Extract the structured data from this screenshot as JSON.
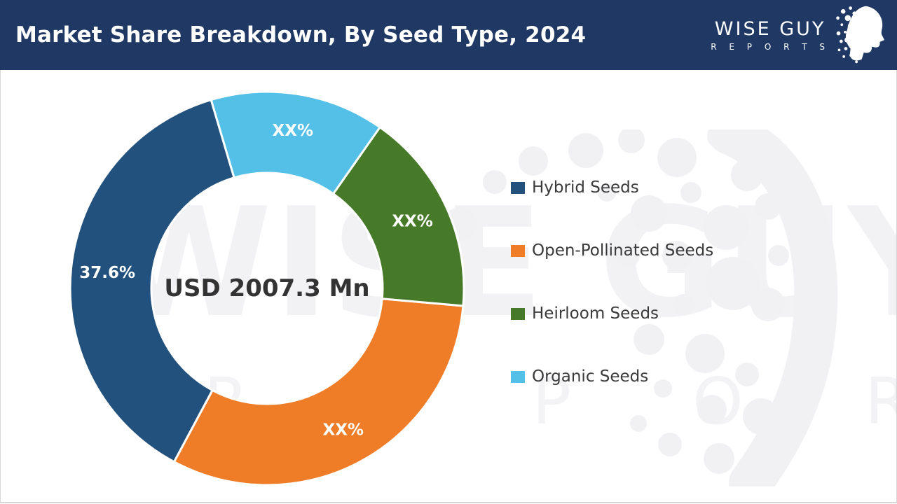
{
  "header": {
    "title": "Market Share Breakdown, By Seed Type, 2024",
    "logo": {
      "brand_line1": "WISE GUY",
      "brand_line2": "R E P O R T S"
    }
  },
  "chart_data": {
    "type": "pie",
    "subtype": "donut",
    "title": "Market Share Breakdown, By Seed Type, 2024",
    "center_label": "USD 2007.3 Mn",
    "legend_position": "right",
    "start_angle_deg": -16.5,
    "direction": "counterclockwise",
    "segments": [
      {
        "label": "Hybrid Seeds",
        "display_value": "37.6%",
        "value": 37.6,
        "color": "#21517C"
      },
      {
        "label": "Open-Pollinated Seeds",
        "display_value": "XX%",
        "value": 31.4,
        "color": "#EF7D28"
      },
      {
        "label": "Heirloom Seeds",
        "display_value": "XX%",
        "value": 16.7,
        "color": "#477A28"
      },
      {
        "label": "Organic Seeds",
        "display_value": "XX%",
        "value": 14.3,
        "color": "#54C0E8"
      }
    ]
  },
  "watermark": {
    "line1": "WISE GUY",
    "line2": "R E P O R T S"
  },
  "colors": {
    "header_bg": "#1F3864",
    "center_text": "#333333",
    "legend_text": "#3A3A3A",
    "watermark": "#F1F1F4"
  }
}
